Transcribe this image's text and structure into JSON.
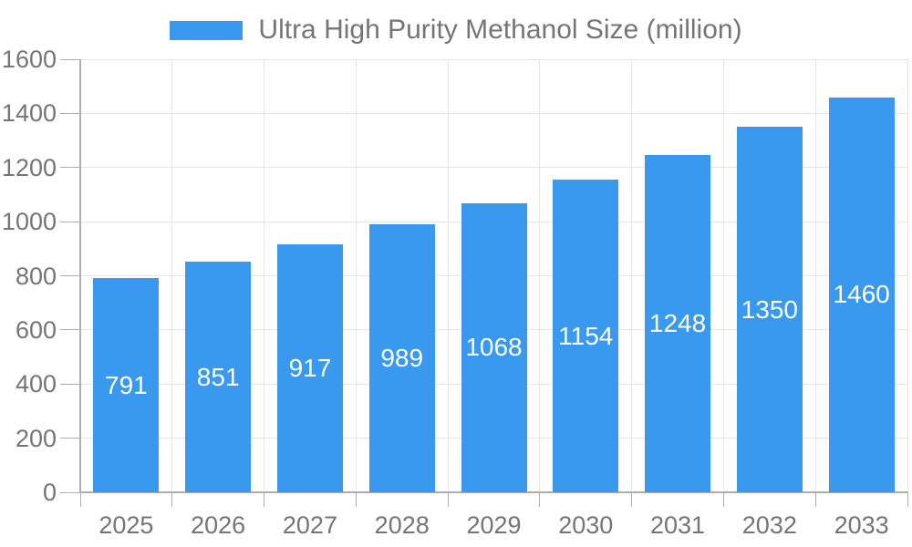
{
  "legend": {
    "label": "Ultra High Purity Methanol Size (million)"
  },
  "colors": {
    "bar": "#3899EE",
    "grid": "#E6E6E6",
    "axis": "#ADADAD",
    "axis_text": "#757575",
    "bar_label_text": "#FFFFFF",
    "background": "#FFFFFF"
  },
  "chart_data": {
    "type": "bar",
    "title": "Ultra High Purity Methanol Size (million)",
    "categories": [
      "2025",
      "2026",
      "2027",
      "2028",
      "2029",
      "2030",
      "2031",
      "2032",
      "2033"
    ],
    "values": [
      791,
      851,
      917,
      989,
      1068,
      1154,
      1248,
      1350,
      1460
    ],
    "xlabel": "",
    "ylabel": "",
    "ylim": [
      0,
      1600
    ],
    "yticks": [
      0,
      200,
      400,
      600,
      800,
      1000,
      1200,
      1400,
      1600
    ],
    "ytick_step": 200,
    "grid": true,
    "legend_position": "top",
    "bar_value_labels": "inside-center"
  }
}
